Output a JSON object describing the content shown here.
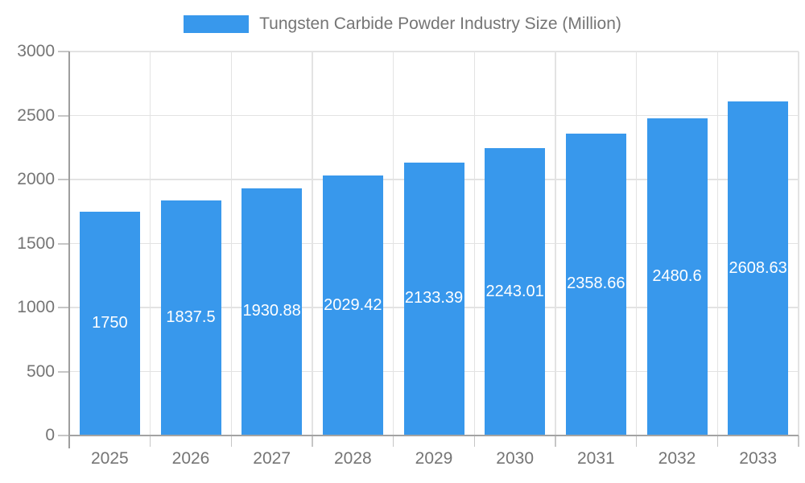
{
  "colors": {
    "bar": "#3898EC",
    "grid": "#E3E3E3",
    "axis_line": "#9E9E9E",
    "baseline": "#A3A3A3",
    "tick": "#C6C6C6",
    "axis_text": "#757575",
    "bar_label_text": "#FFFFFF",
    "background": "#FFFFFF"
  },
  "chart_data": {
    "type": "bar",
    "title": "Tungsten Carbide Powder Industry Size (Million)",
    "xlabel": "",
    "ylabel": "",
    "categories": [
      "2025",
      "2026",
      "2027",
      "2028",
      "2029",
      "2030",
      "2031",
      "2032",
      "2033"
    ],
    "values": [
      1750,
      1837.5,
      1930.88,
      2029.42,
      2133.39,
      2243.01,
      2358.66,
      2480.6,
      2608.63
    ],
    "bar_labels": [
      "1750",
      "1837.5",
      "1930.88",
      "2029.42",
      "2133.39",
      "2243.01",
      "2358.66",
      "2480.6",
      "2608.63"
    ],
    "ylim": [
      0,
      3000
    ],
    "y_ticks": [
      0,
      500,
      1000,
      1500,
      2000,
      2500,
      3000
    ],
    "grid": true,
    "legend_position": "top-center",
    "bar_label_position": "center-inside"
  }
}
